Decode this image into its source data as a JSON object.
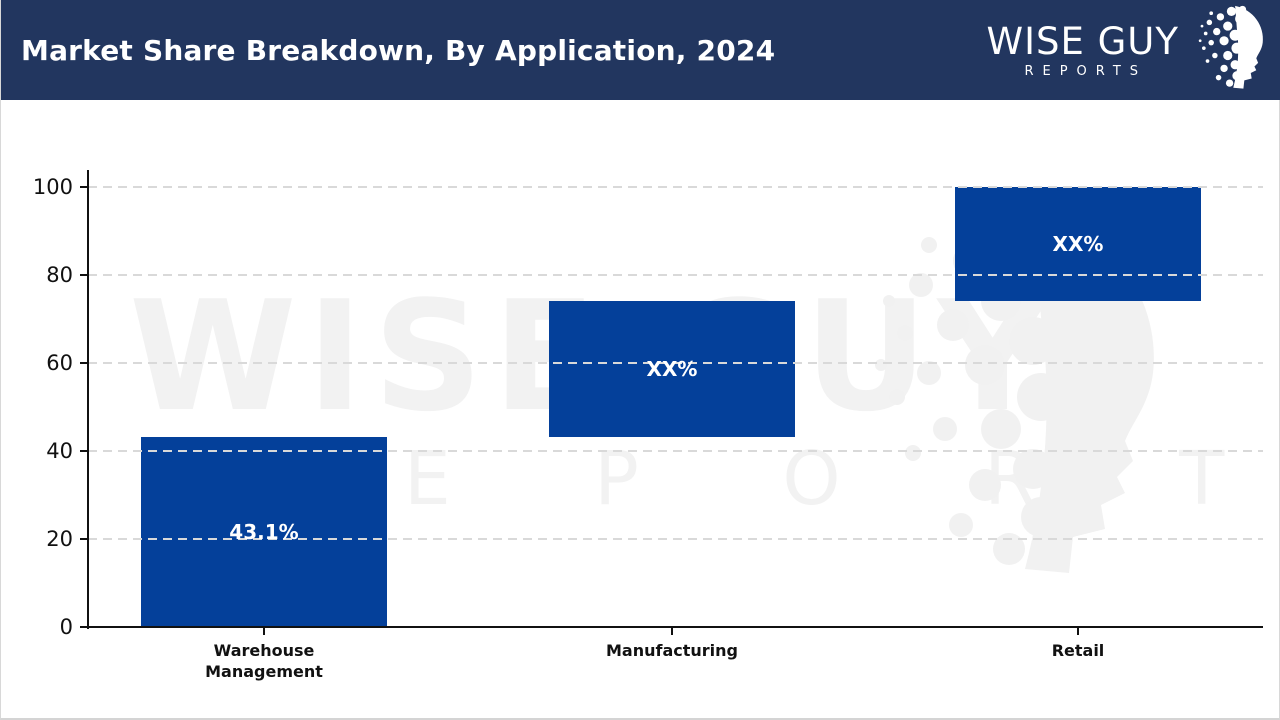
{
  "header": {
    "title": "Market Share Breakdown, By Application, 2024",
    "logo": {
      "line1": "WISE GUY",
      "line2": "REPORTS"
    }
  },
  "watermark": {
    "line1": "WISE GUY",
    "line2": "R E P O R T S"
  },
  "colors": {
    "header_bg": "#22365f",
    "bar": "#04409a",
    "grid": "#d9d9d9",
    "axis": "#111111",
    "bar_label_text": "#ffffff",
    "watermark": "#f2f2f2"
  },
  "chart_data": {
    "type": "bar",
    "subtype": "waterfall-stacked-floating",
    "title": "Market Share Breakdown, By Application, 2024",
    "categories": [
      "Warehouse\nManagement",
      "Manufacturing",
      "Retail"
    ],
    "segments": [
      {
        "category": "Warehouse Management",
        "from": 0,
        "to": 43.1,
        "text": "43.1%"
      },
      {
        "category": "Manufacturing",
        "from": 43.1,
        "to": 74.0,
        "text": "XX%"
      },
      {
        "category": "Retail",
        "from": 74.0,
        "to": 100.0,
        "text": "XX%"
      }
    ],
    "yticks": [
      0,
      20,
      40,
      60,
      80,
      100
    ],
    "ylim": [
      0,
      100
    ],
    "xlabel": "",
    "ylabel": "",
    "grid": true,
    "grid_style": "dashed",
    "legend": false
  }
}
